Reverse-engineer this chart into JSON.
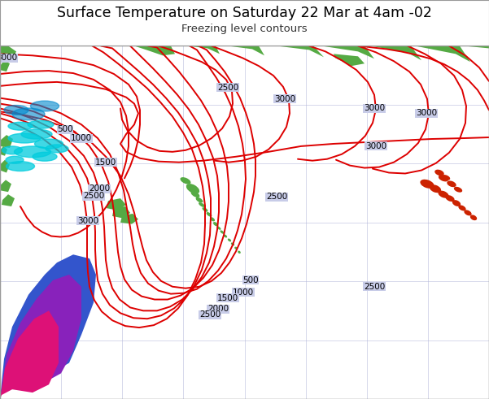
{
  "title": "Surface Temperature on Saturday 22 Mar at 4am -02",
  "subtitle": "Freezing level contours",
  "title_fontsize": 12.5,
  "subtitle_fontsize": 9.5,
  "ocean_color": "#c8cce8",
  "contour_color": "#dd0000",
  "fig_width": 6.01,
  "fig_height": 4.91,
  "dpi": 100,
  "border_color": "#999999",
  "grid_color": "#aaaacc",
  "title_area_color": "#ffffff",
  "label_bg": "#c8cce8"
}
